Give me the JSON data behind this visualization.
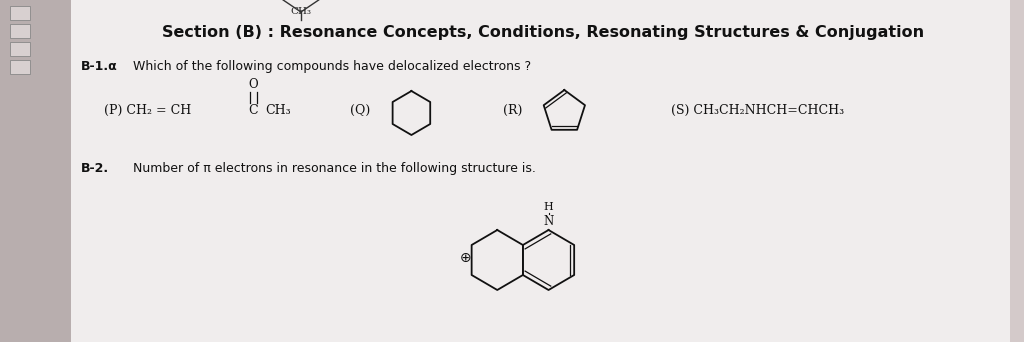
{
  "title": "Section (B) : Resonance Concepts, Conditions, Resonating Structures & Conjugation",
  "title_fontsize": 11.5,
  "bg_color": "#d4caca",
  "page_bg": "#f0eded",
  "q1_label": "B-1.α",
  "q1_text": "Which of the following compounds have delocalized electrons ?",
  "q2_label": "B-2.",
  "q2_text": "Number of π electrons in resonance in the following structure is.",
  "left_bar_color": "#b8aeae",
  "left_bar_width": 0.72,
  "margin_sq_color": "#d8d0d0",
  "margin_sq_border": "#888888"
}
